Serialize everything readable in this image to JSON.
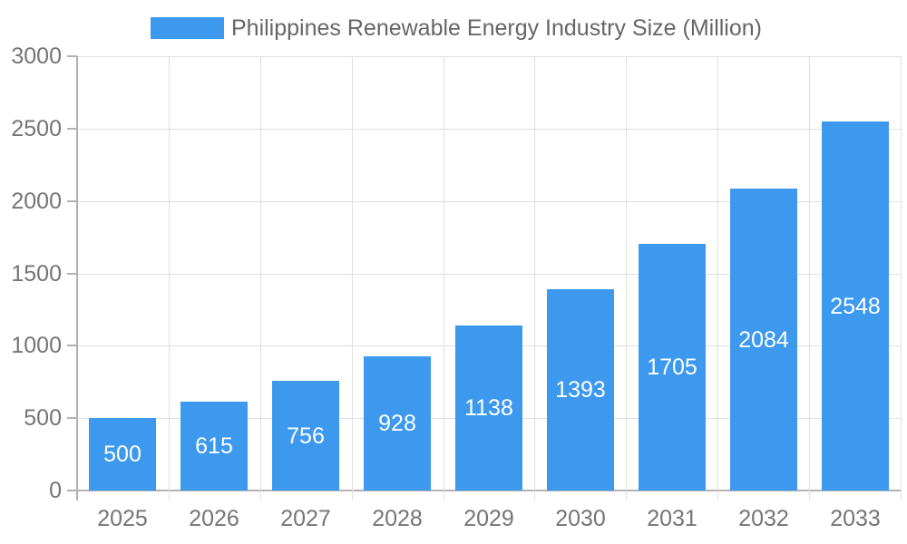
{
  "chart_data": {
    "type": "bar",
    "title": "Philippines Renewable Energy Industry Size (Million)",
    "categories": [
      "2025",
      "2026",
      "2027",
      "2028",
      "2029",
      "2030",
      "2031",
      "2032",
      "2033"
    ],
    "values": [
      500,
      615,
      756,
      928,
      1138,
      1393,
      1705,
      2084,
      2548
    ],
    "xlabel": "",
    "ylabel": "",
    "ylim": [
      0,
      3000
    ],
    "ytick_interval": 500,
    "ytick_labels": [
      "0",
      "500",
      "1000",
      "1500",
      "2000",
      "2500",
      "3000"
    ],
    "grid": true,
    "legend_position": "top",
    "bar_color": "#3c99ee",
    "value_label_color": "#ffffff",
    "axis_label_color": "#757575",
    "legend_text_color": "#666666",
    "gridline_color": "#e0e0e0",
    "axis_line_color": "#b2b2b2"
  }
}
